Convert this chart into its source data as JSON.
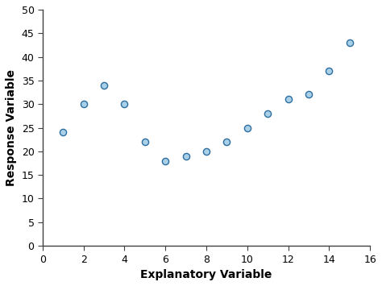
{
  "x": [
    1,
    2,
    3,
    4,
    5,
    6,
    7,
    8,
    9,
    10,
    11,
    12,
    13,
    14,
    15
  ],
  "y": [
    24,
    30,
    34,
    30,
    22,
    18,
    19,
    20,
    22,
    25,
    28,
    31,
    32,
    37,
    43
  ],
  "xlabel": "Explanatory Variable",
  "ylabel": "Response Variable",
  "xlim": [
    0,
    16
  ],
  "ylim": [
    0,
    50
  ],
  "xticks": [
    0,
    2,
    4,
    6,
    8,
    10,
    12,
    14,
    16
  ],
  "yticks": [
    0,
    5,
    10,
    15,
    20,
    25,
    30,
    35,
    40,
    45,
    50
  ],
  "marker_facecolor": "#a8d0e8",
  "marker_edgecolor": "#2e6e9e",
  "marker_size": 35,
  "marker_linewidth": 1.0,
  "xlabel_fontsize": 10,
  "ylabel_fontsize": 10,
  "tick_fontsize": 9,
  "background_color": "#ffffff",
  "spine_color": "#404040",
  "figsize": [
    4.74,
    3.55
  ],
  "dpi": 100
}
